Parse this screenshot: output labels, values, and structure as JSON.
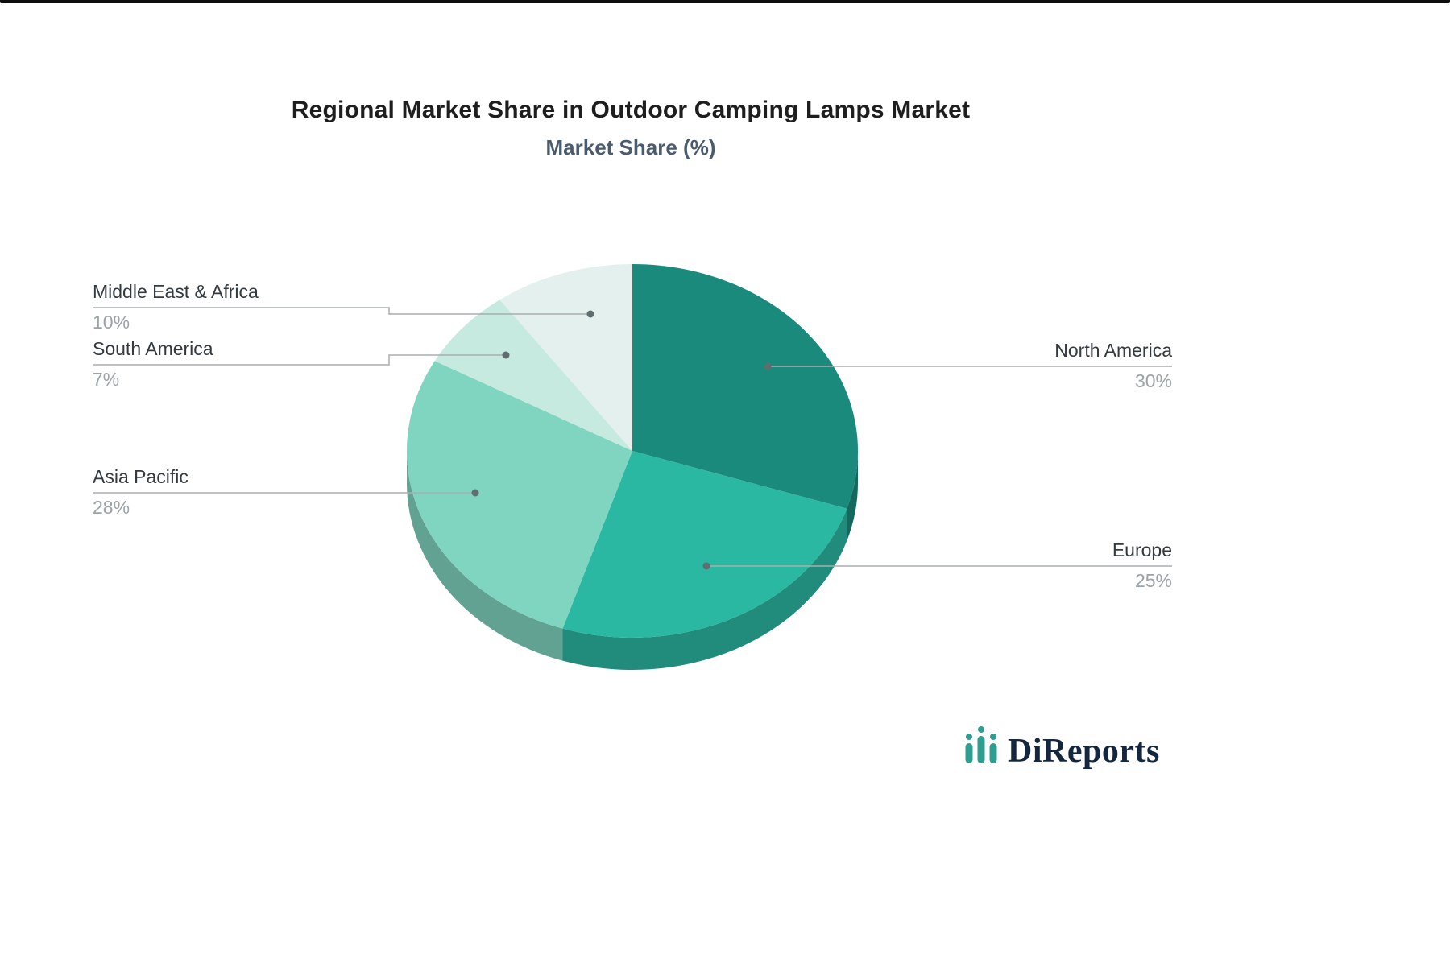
{
  "title": "Regional Market Share in Outdoor Camping Lamps Market",
  "subtitle": "Market Share (%)",
  "logo": {
    "text": "DiReports",
    "icon_color": "#2f9e90",
    "text_color": "#15273f"
  },
  "chart_data": {
    "type": "pie",
    "title": "Regional Market Share in Outdoor Camping Lamps Market",
    "subtitle": "Market Share (%)",
    "unit": "%",
    "categories": [
      "North America",
      "Europe",
      "Asia Pacific",
      "South America",
      "Middle East & Africa"
    ],
    "values": [
      30,
      25,
      28,
      7,
      10
    ],
    "value_labels": [
      "30%",
      "25%",
      "28%",
      "7%",
      "10%"
    ],
    "colors": [
      "#1a8a7c",
      "#2bb8a3",
      "#80d5c0",
      "#c6e9e0",
      "#e4f0ed"
    ],
    "start_angle_deg": -90,
    "direction": "clockwise",
    "style": "3d",
    "legend": "none",
    "label_layout": "leader-lines-outside"
  }
}
